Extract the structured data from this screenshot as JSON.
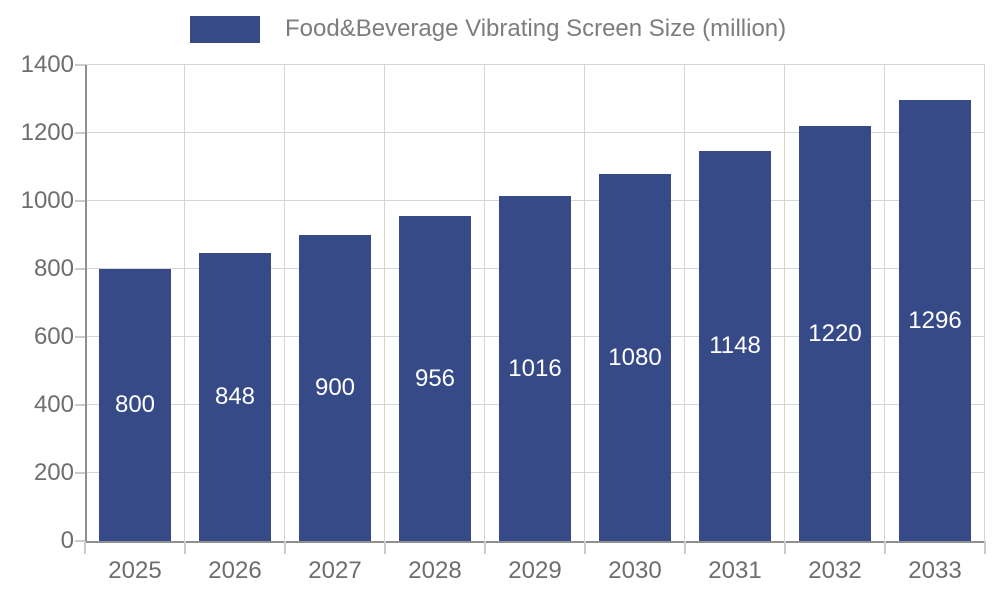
{
  "chart_data": {
    "type": "bar",
    "title": "",
    "legend": "Food&Beverage Vibrating Screen Size (million)",
    "legend_position": "top",
    "categories": [
      "2025",
      "2026",
      "2027",
      "2028",
      "2029",
      "2030",
      "2031",
      "2032",
      "2033"
    ],
    "values": [
      800,
      848,
      900,
      956,
      1016,
      1080,
      1148,
      1220,
      1296
    ],
    "xlabel": "",
    "ylabel": "",
    "ylim": [
      0,
      1400
    ],
    "yticks": [
      0,
      200,
      400,
      600,
      800,
      1000,
      1200,
      1400
    ],
    "grid": true,
    "value_label_position": "inside-center",
    "colors": {
      "bar": "#374a88",
      "value_label": "#ffffff",
      "grid": "#d6d6d6",
      "axis": "#8f8f8f",
      "tick_mark": "#cccccc",
      "tick_label": "#6e6e6e",
      "legend_text": "#7d7d7d",
      "background": "#ffffff"
    }
  }
}
